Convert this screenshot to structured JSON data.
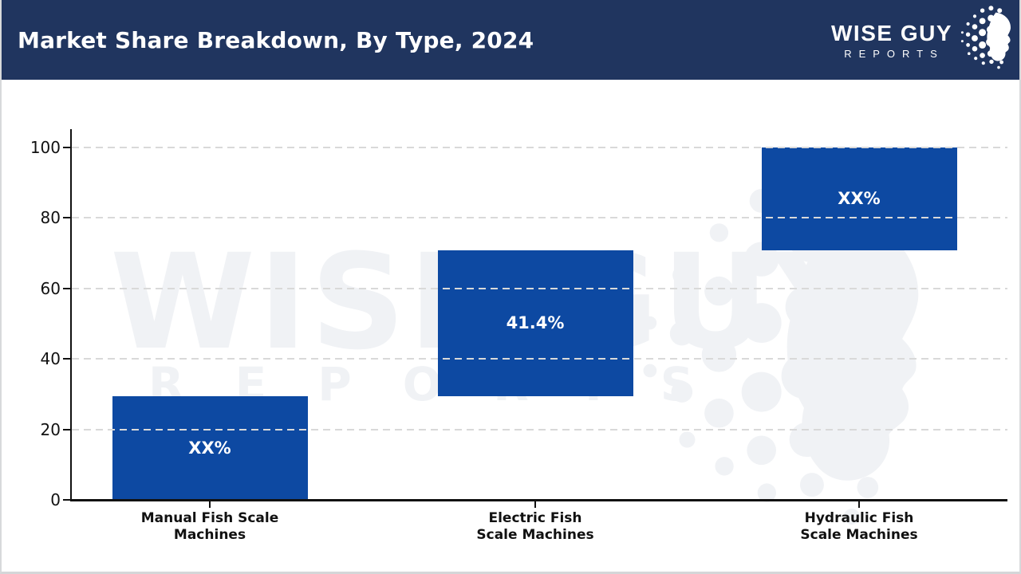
{
  "header": {
    "title": "Market Share Breakdown, By Type, 2024",
    "bg_color": "#20355f",
    "logo": {
      "line1": "WISE GUY",
      "line2": "REPORTS"
    }
  },
  "watermark": {
    "line1": "WISE GUY",
    "line2": "REPORTS",
    "color": "#f0f2f5"
  },
  "chart_data": {
    "type": "bar",
    "subtype": "floating-segment-bars",
    "title": "Market Share Breakdown, By Type, 2024",
    "xlabel": "",
    "ylabel": "",
    "ylim": [
      0,
      105
    ],
    "yticks": [
      0,
      20,
      40,
      60,
      80,
      100
    ],
    "grid": "dashed-horizontal-on-top",
    "bar_color": "#0d49a2",
    "value_label_color": "#ffffff",
    "categories": [
      [
        "Manual Fish Scale",
        "Machines"
      ],
      [
        "Electric Fish",
        "Scale Machines"
      ],
      [
        "Hydraulic Fish",
        "Scale Machines"
      ]
    ],
    "segments": [
      {
        "category": "Manual Fish Scale Machines",
        "start": 0,
        "end": 29.5,
        "value_label": "XX%"
      },
      {
        "category": "Electric Fish Scale Machines",
        "start": 29.5,
        "end": 70.9,
        "value_label": "41.4%"
      },
      {
        "category": "Hydraulic Fish Scale Machines",
        "start": 70.9,
        "end": 100,
        "value_label": "XX%"
      }
    ]
  }
}
